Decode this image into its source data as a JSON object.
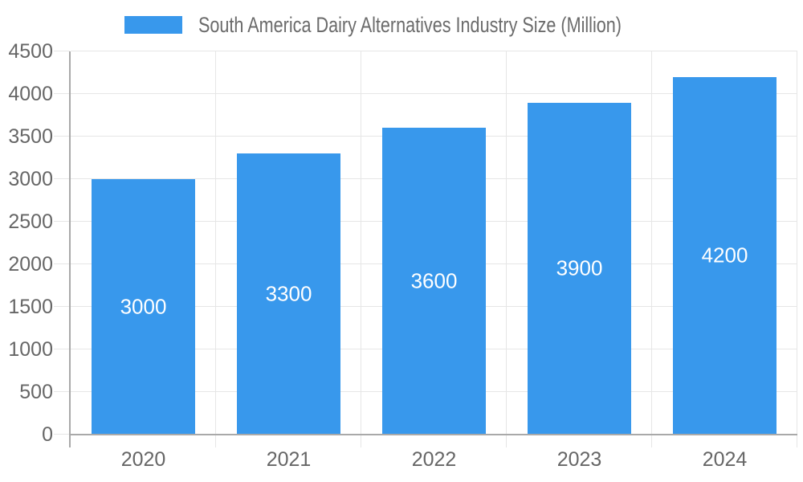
{
  "chart_data": {
    "type": "bar",
    "title": "South America Dairy Alternatives Industry Size (Million)",
    "categories": [
      "2020",
      "2021",
      "2022",
      "2023",
      "2024"
    ],
    "values": [
      3000,
      3300,
      3600,
      3900,
      4200
    ],
    "bar_value_labels": [
      "3000",
      "3300",
      "3600",
      "3900",
      "4200"
    ],
    "xlabel": "",
    "ylabel": "",
    "ylim": [
      0,
      4500
    ],
    "ytick_step": 500,
    "yticks": [
      0,
      500,
      1000,
      1500,
      2000,
      2500,
      3000,
      3500,
      4000,
      4500
    ],
    "grid": true,
    "legend_position": "top",
    "legend_entries": [
      "South America Dairy Alternatives Industry Size (Million)"
    ],
    "colors": {
      "bar": "#3898ec",
      "bar_label_text": "#ffffff",
      "axis_text": "#666666",
      "title_text": "#6b6b6b",
      "gridline": "#e6e6e6",
      "axis_line": "#a9a9a9",
      "background": "#ffffff"
    }
  }
}
